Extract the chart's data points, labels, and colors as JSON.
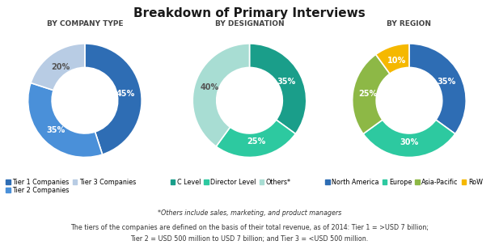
{
  "title": "Breakdown of Primary Interviews",
  "chart1": {
    "subtitle": "BY COMPANY TYPE",
    "values": [
      45,
      35,
      20
    ],
    "labels": [
      "45%",
      "35%",
      "20%"
    ],
    "colors": [
      "#2e6db4",
      "#4a90d9",
      "#b8cce4"
    ],
    "label_colors": [
      "white",
      "white",
      "#555555"
    ],
    "legend_labels": [
      "Tier 1 Companies",
      "Tier 2 Companies",
      "Tier 3 Companies"
    ]
  },
  "chart2": {
    "subtitle": "BY DESIGNATION",
    "values": [
      35,
      25,
      40
    ],
    "labels": [
      "35%",
      "25%",
      "40%"
    ],
    "colors": [
      "#1a9e8a",
      "#2dc9a0",
      "#a8ddd3"
    ],
    "label_colors": [
      "white",
      "white",
      "#555555"
    ],
    "legend_labels": [
      "C Level",
      "Director Level",
      "Others*"
    ]
  },
  "chart3": {
    "subtitle": "BY REGION",
    "values": [
      35,
      30,
      25,
      10
    ],
    "labels": [
      "35%",
      "30%",
      "25%",
      "10%"
    ],
    "colors": [
      "#2e6db4",
      "#2dc9a0",
      "#8db846",
      "#f5b800"
    ],
    "label_colors": [
      "white",
      "white",
      "white",
      "white"
    ],
    "legend_labels": [
      "North America",
      "Europe",
      "Asia-Pacific",
      "RoW"
    ]
  },
  "footnote1": "*Others include sales, marketing, and product managers",
  "footnote2_line1": "The tiers of the companies are defined on the basis of their total revenue, as of 2014: Tier 1 = >USD 7 billion;",
  "footnote2_line2": "Tier 2 = USD 500 million to USD 7 billion; and Tier 3 = <USD 500 million.",
  "title_fontsize": 11,
  "subtitle_fontsize": 6.5,
  "legend_fontsize": 5.8,
  "label_fontsize": 7,
  "footnote_fontsize": 5.8,
  "background_color": "#ffffff"
}
